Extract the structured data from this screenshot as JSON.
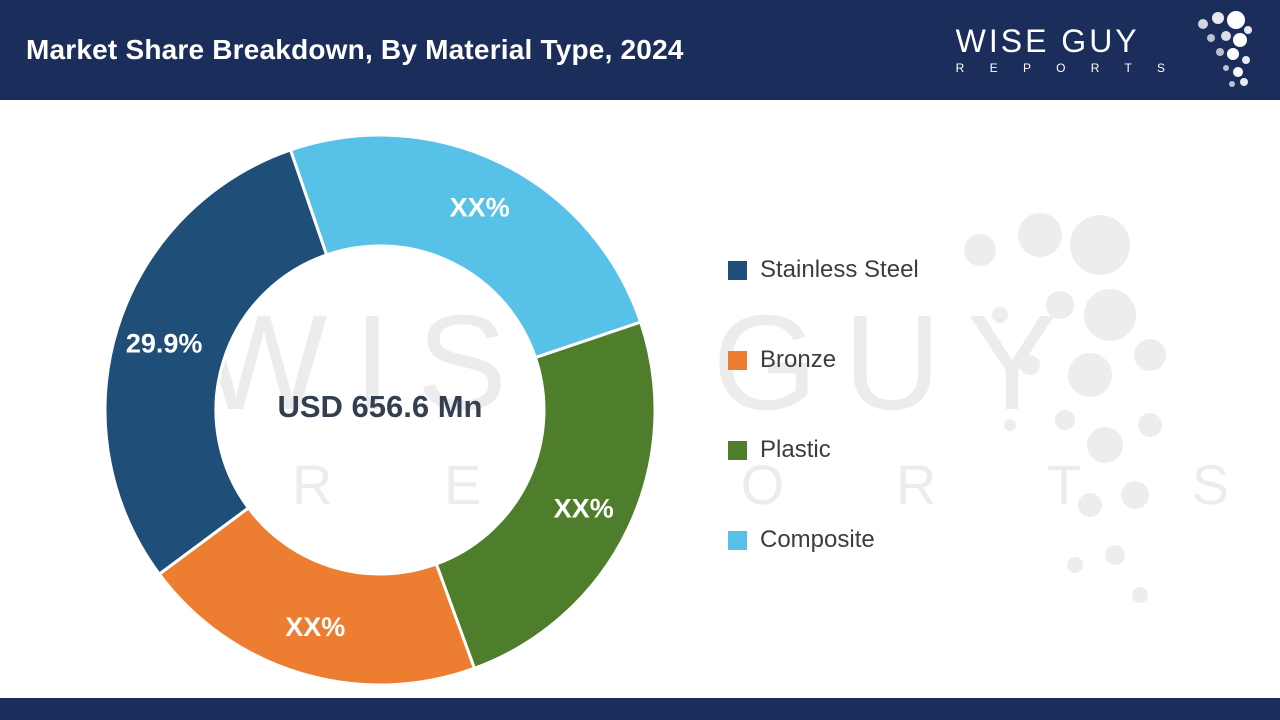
{
  "header": {
    "title": "Market Share Breakdown, By Material Type, 2024",
    "logo": {
      "line1": "WISE GUY",
      "line2": "R E P O R T S"
    }
  },
  "watermark": {
    "line1": "WISE GUY",
    "line2": "R E P O R T S"
  },
  "chart_data": {
    "type": "pie",
    "subtype": "donut",
    "title": "Market Share Breakdown, By Material Type, 2024",
    "center_label": "USD 656.6 Mn",
    "units": "%",
    "start_angle_deg": 109,
    "legend_position": "right",
    "segments": [
      {
        "name": "Composite",
        "value": 25.1,
        "label": "XX%",
        "color": "#57c1e8"
      },
      {
        "name": "Plastic",
        "value": 24.6,
        "label": "XX%",
        "color": "#4e7d2b"
      },
      {
        "name": "Bronze",
        "value": 20.4,
        "label": "XX%",
        "color": "#ed7d31"
      },
      {
        "name": "Stainless Steel",
        "value": 29.9,
        "label": "29.9%",
        "color": "#1f4e79"
      }
    ],
    "legend": [
      {
        "label": "Stainless Steel",
        "color": "#1f4e79"
      },
      {
        "label": "Bronze",
        "color": "#ed7d31"
      },
      {
        "label": "Plastic",
        "color": "#4e7d2b"
      },
      {
        "label": "Composite",
        "color": "#57c1e8"
      }
    ]
  }
}
